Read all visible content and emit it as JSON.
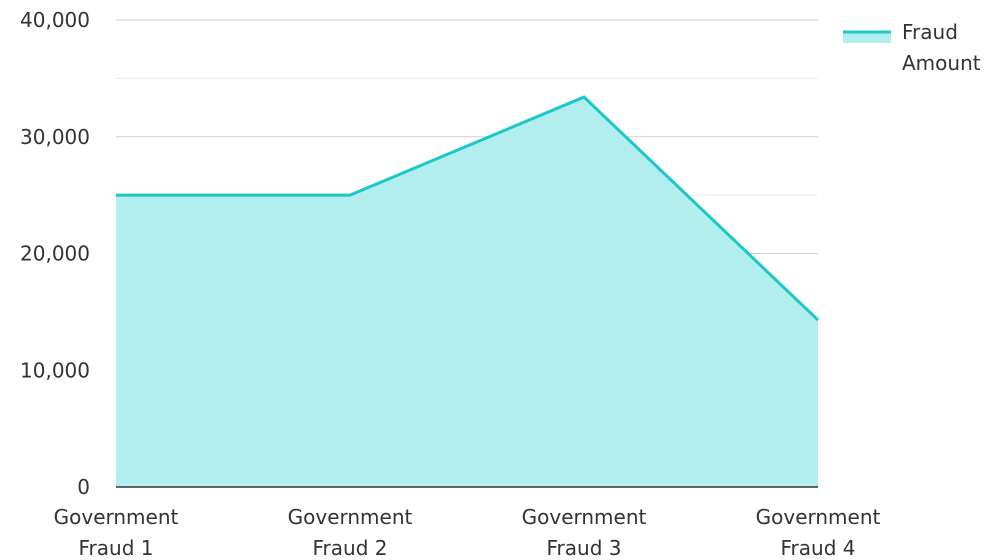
{
  "chart_data": {
    "type": "area",
    "categories": [
      "Government Fraud 1",
      "Government Fraud 2",
      "Government Fraud 3",
      "Government Fraud 4"
    ],
    "category_lines": [
      [
        "Government",
        "Fraud 1"
      ],
      [
        "Government",
        "Fraud 2"
      ],
      [
        "Government",
        "Fraud 3"
      ],
      [
        "Government",
        "Fraud 4"
      ]
    ],
    "series": [
      {
        "name": "Fraud Amount",
        "name_lines": [
          "Fraud",
          "Amount"
        ],
        "values": [
          25000,
          25000,
          33400,
          14300
        ],
        "line_color": "#1BC8C8",
        "fill_color": "#B2EEEE"
      }
    ],
    "ylim": [
      0,
      40000
    ],
    "y_ticks": [
      0,
      10000,
      20000,
      30000,
      40000
    ],
    "y_tick_labels": [
      "0",
      "10,000",
      "20,000",
      "30,000",
      "40,000"
    ],
    "grid": true,
    "legend_position": "top-right",
    "title": "",
    "xlabel": "",
    "ylabel": ""
  }
}
